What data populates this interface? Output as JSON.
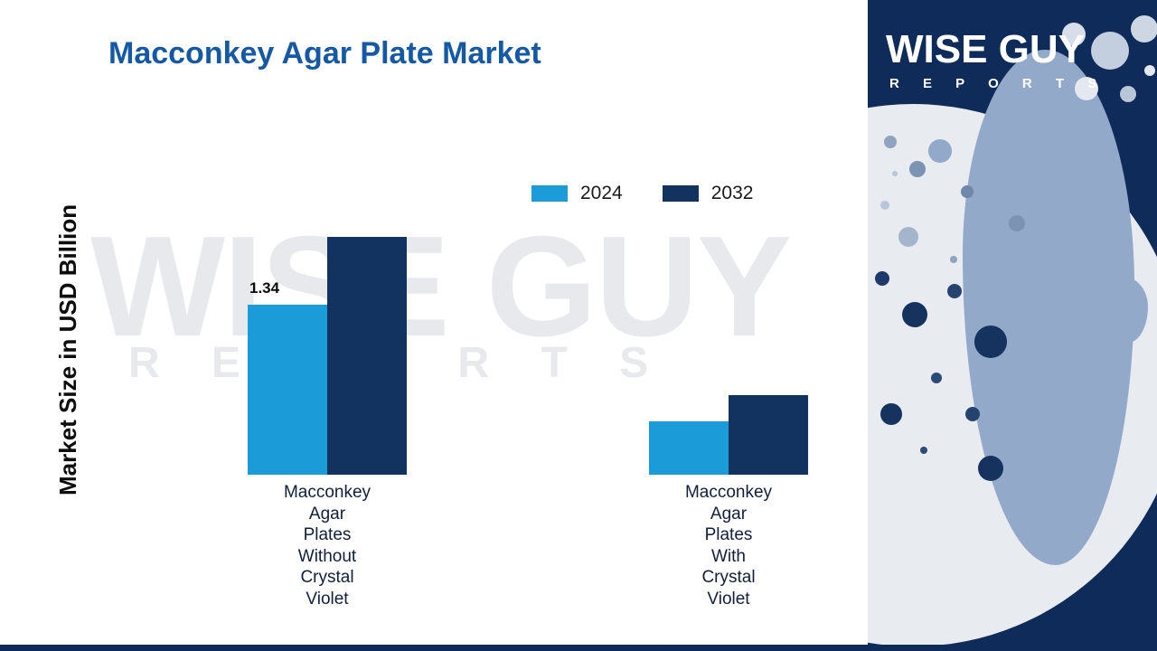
{
  "title": "Macconkey Agar Plate Market",
  "watermark": {
    "line1": "WISE GUY",
    "line2": "R E P O R T S"
  },
  "brand": {
    "line1": "WISE GUY",
    "line2": "R E P O R T S"
  },
  "colors": {
    "title_blue": "#1559a5",
    "panel_navy": "#0e2b5a",
    "series_2024": "#1b9cd8",
    "series_2032": "#12335f"
  },
  "chart_data": {
    "type": "bar",
    "title": "Macconkey Agar Plate Market",
    "xlabel": "",
    "ylabel": "Market Size in USD Billion",
    "unit": "USD Billion",
    "categories": [
      "Macconkey Agar Plates Without Crystal Violet",
      "Macconkey Agar Plates With Crystal Violet"
    ],
    "category_display": [
      "Macconkey\nAgar\nPlates\nWithout\nCrystal\nViolet",
      "Macconkey\nAgar\nPlates\nWith\nCrystal\nViolet"
    ],
    "series": [
      {
        "name": "2024",
        "color": "#1b9cd8",
        "values": [
          1.34,
          0.42
        ]
      },
      {
        "name": "2032",
        "color": "#12335f",
        "values": [
          1.88,
          0.63
        ]
      }
    ],
    "data_labels": [
      [
        "1.34",
        ""
      ],
      [
        "",
        ""
      ]
    ],
    "legend_position": "top-center",
    "grid": false,
    "ylim": [
      0,
      2
    ]
  }
}
